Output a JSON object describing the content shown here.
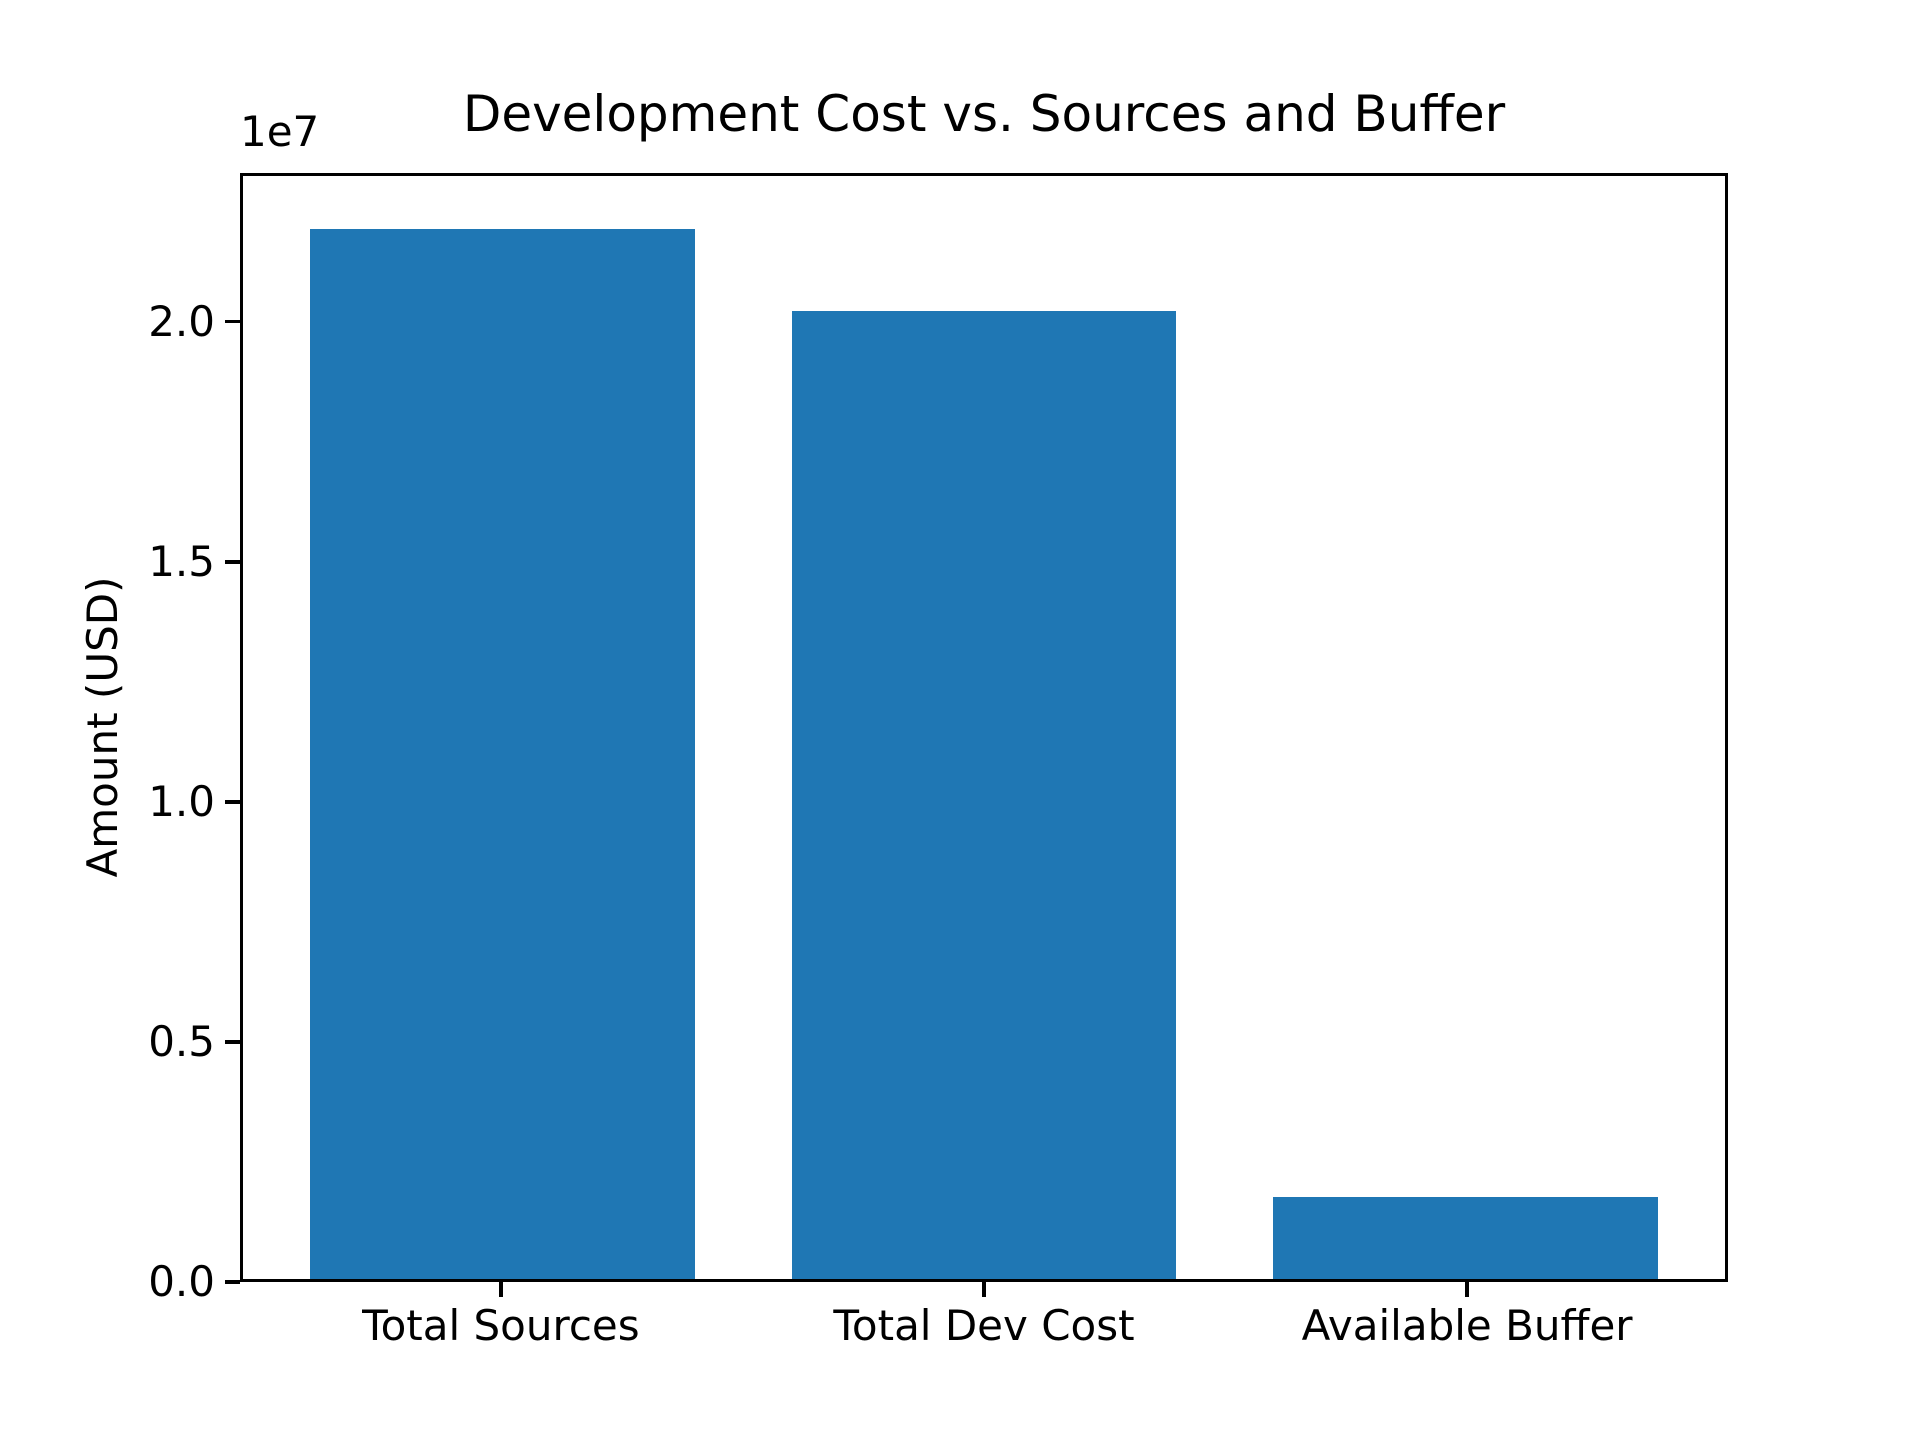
{
  "title": "Development Cost vs. Sources and Buffer",
  "chart_data": {
    "type": "bar",
    "title": "Development Cost vs. Sources and Buffer",
    "categories": [
      "Total Sources",
      "Total Dev Cost",
      "Available Buffer"
    ],
    "values": [
      22000000,
      20275000,
      1725000
    ],
    "xlabel": "",
    "ylabel": "Amount (USD)",
    "offset_text": "1e7",
    "yticks": [
      0,
      5000000,
      10000000,
      15000000,
      20000000
    ],
    "ytick_labels": [
      "0.0",
      "0.5",
      "1.0",
      "1.5",
      "2.0"
    ],
    "ylim": [
      0,
      23100000
    ],
    "xlim": [
      -0.54,
      2.54
    ],
    "bar_width": 0.8,
    "bar_color": "#1f77b4",
    "spine_color": "#000000",
    "background_color": "#ffffff",
    "grid": false,
    "legend": null
  }
}
